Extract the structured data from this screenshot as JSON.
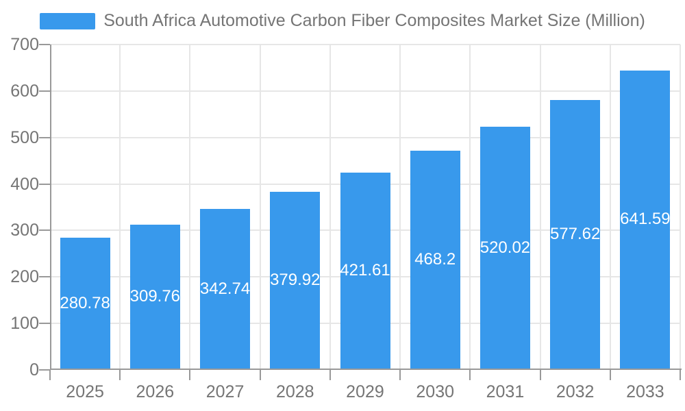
{
  "chart_data": {
    "type": "bar",
    "title": "South Africa Automotive Carbon Fiber Composites Market Size (Million)",
    "series_name": "South Africa Automotive Carbon Fiber Composites Market Size (Million)",
    "categories": [
      "2025",
      "2026",
      "2027",
      "2028",
      "2029",
      "2030",
      "2031",
      "2032",
      "2033"
    ],
    "values": [
      280.78,
      309.76,
      342.74,
      379.92,
      421.61,
      468.2,
      520.02,
      577.62,
      641.59
    ],
    "value_labels": [
      "280.78",
      "309.76",
      "342.74",
      "379.92",
      "421.61",
      "468.2",
      "520.02",
      "577.62",
      "641.59"
    ],
    "xlabel": "",
    "ylabel": "",
    "ylim": [
      0,
      700
    ],
    "ytick_step": 100,
    "ytick_labels": [
      "0",
      "100",
      "200",
      "300",
      "400",
      "500",
      "600",
      "700"
    ],
    "grid": true,
    "legend_position": "top",
    "colors": {
      "bar": "#3899EC",
      "value_label": "#FFFFFF",
      "axis_line": "#999999",
      "grid_line": "#E6E6E6",
      "text": "#757575",
      "background": "#FFFFFF"
    }
  }
}
